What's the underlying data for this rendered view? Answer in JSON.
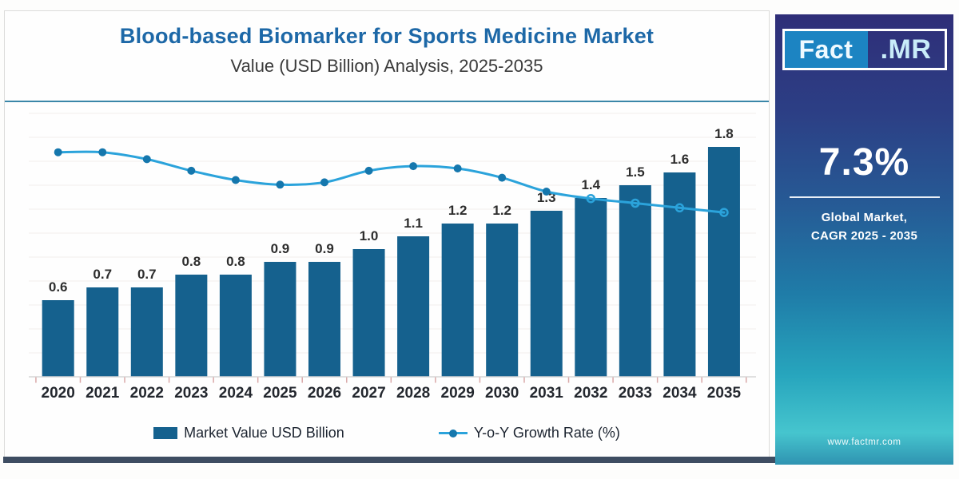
{
  "header": {
    "title": "Blood-based Biomarker for Sports Medicine Market",
    "subtitle": "Value (USD Billion) Analysis, 2025-2035"
  },
  "legend": {
    "bars_label": "Market Value USD Billion",
    "line_label": "Y-o-Y Growth Rate (%)"
  },
  "sidebar": {
    "logo_part1": "Fact",
    "logo_part2": ".MR",
    "stat_value": "7.3%",
    "caption_line1": "Global Market,",
    "caption_line2": "CAGR 2025 - 2035",
    "website": "www.factmr.com"
  },
  "colors": {
    "bar_fill": "#15618E",
    "line_stroke": "#2BA3DB",
    "marker_fill": "#1577AD",
    "title_blue": "#1D68A7",
    "divider_teal": "#3A86A8",
    "bottom_bar": "#3E4D62",
    "sidebar_top": "#2F2E78",
    "sidebar_bottom": "#2F93B1",
    "grid": "#F1EFEC",
    "axis": "#D6D6D6",
    "tick": "#D9A8A8",
    "value_label": "#2D2D2D",
    "year_label": "#23272E"
  },
  "chart_data": {
    "type": "bar",
    "combo": "bar + line",
    "title": "Blood-based Biomarker for Sports Medicine Market",
    "subtitle": "Value (USD Billion) Analysis, 2025-2035",
    "categories": [
      "2020",
      "2021",
      "2022",
      "2023",
      "2024",
      "2025",
      "2026",
      "2027",
      "2028",
      "2029",
      "2030",
      "2031",
      "2032",
      "2033",
      "2034",
      "2035"
    ],
    "series": [
      {
        "name": "Market Value USD Billion",
        "type": "bar",
        "values": [
          0.6,
          0.7,
          0.7,
          0.8,
          0.8,
          0.9,
          0.9,
          1.0,
          1.1,
          1.2,
          1.2,
          1.3,
          1.4,
          1.5,
          1.6,
          1.8
        ],
        "data_labels_shown": true
      },
      {
        "name": "Y-o-Y Growth Rate (%)",
        "type": "line",
        "values": [
          9.7,
          9.7,
          9.4,
          8.9,
          8.5,
          8.3,
          8.4,
          8.9,
          9.1,
          9.0,
          8.6,
          8.0,
          7.7,
          7.5,
          7.3,
          7.1
        ],
        "note": "secondary axis not labeled in image; percentages estimated from line position"
      }
    ],
    "xlabel": "",
    "ylabel": "",
    "y_axis_ticks_visible": false,
    "grid": "faint horizontal gridlines",
    "legend_position": "bottom"
  }
}
